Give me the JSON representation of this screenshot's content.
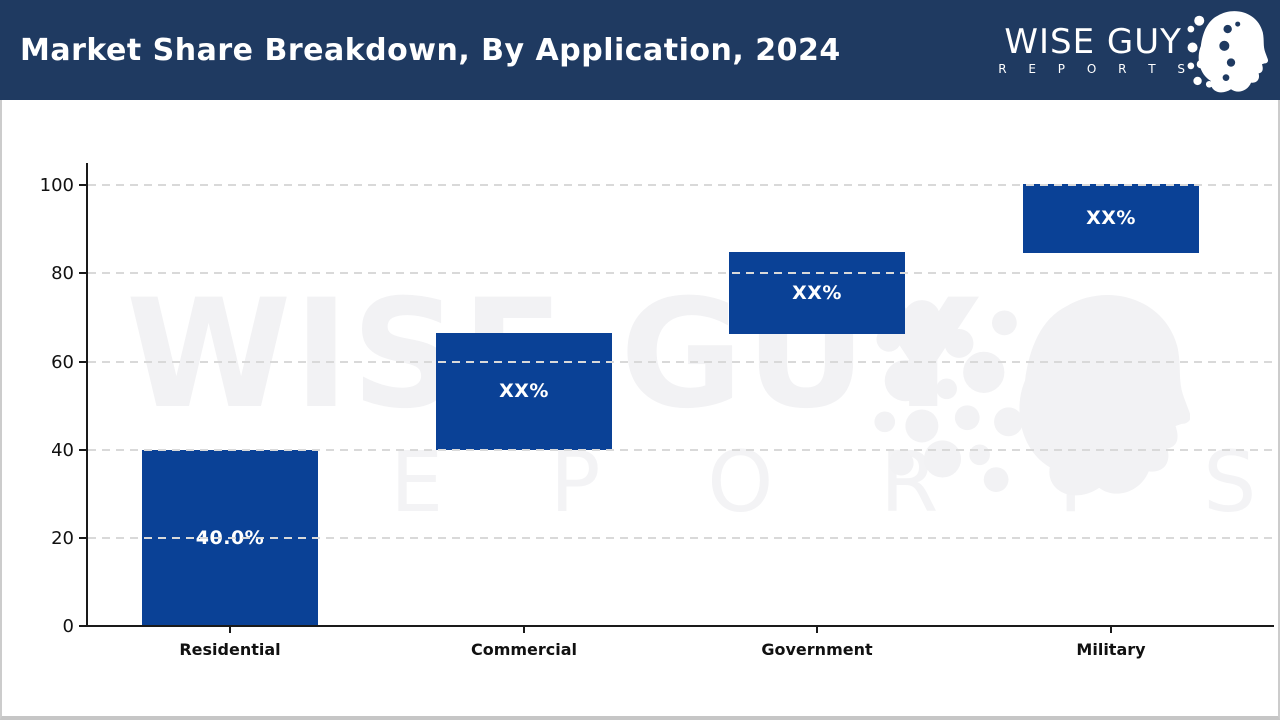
{
  "header": {
    "title": "Market Share Breakdown, By Application, 2024",
    "logo": {
      "name_top": "WISE GUY",
      "name_bottom": "R E P O R T S"
    }
  },
  "watermark": {
    "line1": "WISE GUY",
    "line2": "R E P O R T S"
  },
  "chart_data": {
    "type": "bar",
    "variant": "waterfall",
    "title": "Market Share Breakdown, By Application, 2024",
    "categories": [
      "Residential",
      "Commercial",
      "Government",
      "Military"
    ],
    "bars": [
      {
        "category": "Residential",
        "start": 0,
        "end": 40.0,
        "label": "40.0%"
      },
      {
        "category": "Commercial",
        "start": 40.0,
        "end": 66.4,
        "label": "XX%"
      },
      {
        "category": "Government",
        "start": 66.2,
        "end": 84.7,
        "label": "XX%"
      },
      {
        "category": "Military",
        "start": 84.5,
        "end": 100.2,
        "label": "XX%"
      }
    ],
    "yticks": [
      "0",
      "20",
      "40",
      "60",
      "80",
      "100"
    ],
    "ylim": [
      0,
      105
    ],
    "xlabel": "",
    "ylabel": "",
    "bar_color": "#0a4196",
    "grid": true,
    "grid_style": "dashed",
    "legend": "none"
  }
}
